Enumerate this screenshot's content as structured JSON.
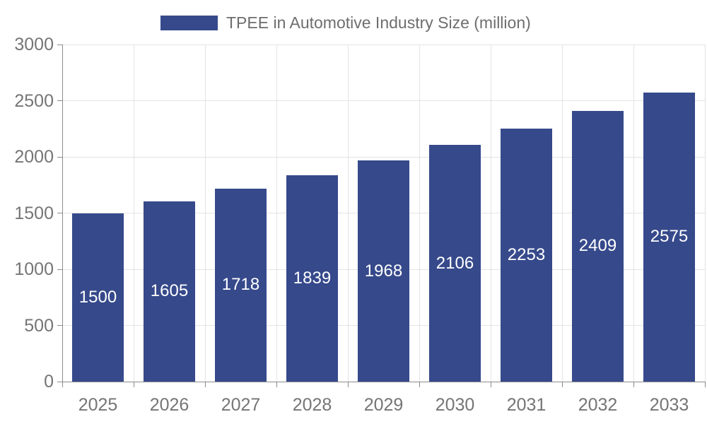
{
  "legend": {
    "label": "TPEE in Automotive Industry Size (million)"
  },
  "colors": {
    "bar": "#36498B",
    "grid": "#e3e3e3",
    "axis_line": "#8c8c8c",
    "axis_label": "#757575",
    "legend_text": "#6e6e6e",
    "data_label": "#ffffff",
    "background": "#ffffff"
  },
  "chart_data": {
    "type": "bar",
    "title": "TPEE in Automotive Industry Size (million)",
    "categories": [
      "2025",
      "2026",
      "2027",
      "2028",
      "2029",
      "2030",
      "2031",
      "2032",
      "2033"
    ],
    "values": [
      1500,
      1605,
      1718,
      1839,
      1968,
      2106,
      2253,
      2409,
      2575
    ],
    "series_name": "TPEE in Automotive Industry Size (million)",
    "xlabel": "",
    "ylabel": "",
    "ylim": [
      0,
      3000
    ],
    "ytick_interval": 500,
    "yticks": [
      "0",
      "500",
      "1000",
      "1500",
      "2000",
      "2500",
      "3000"
    ],
    "grid": true,
    "legend_position": "top",
    "data_labels_position": "inside-center"
  }
}
